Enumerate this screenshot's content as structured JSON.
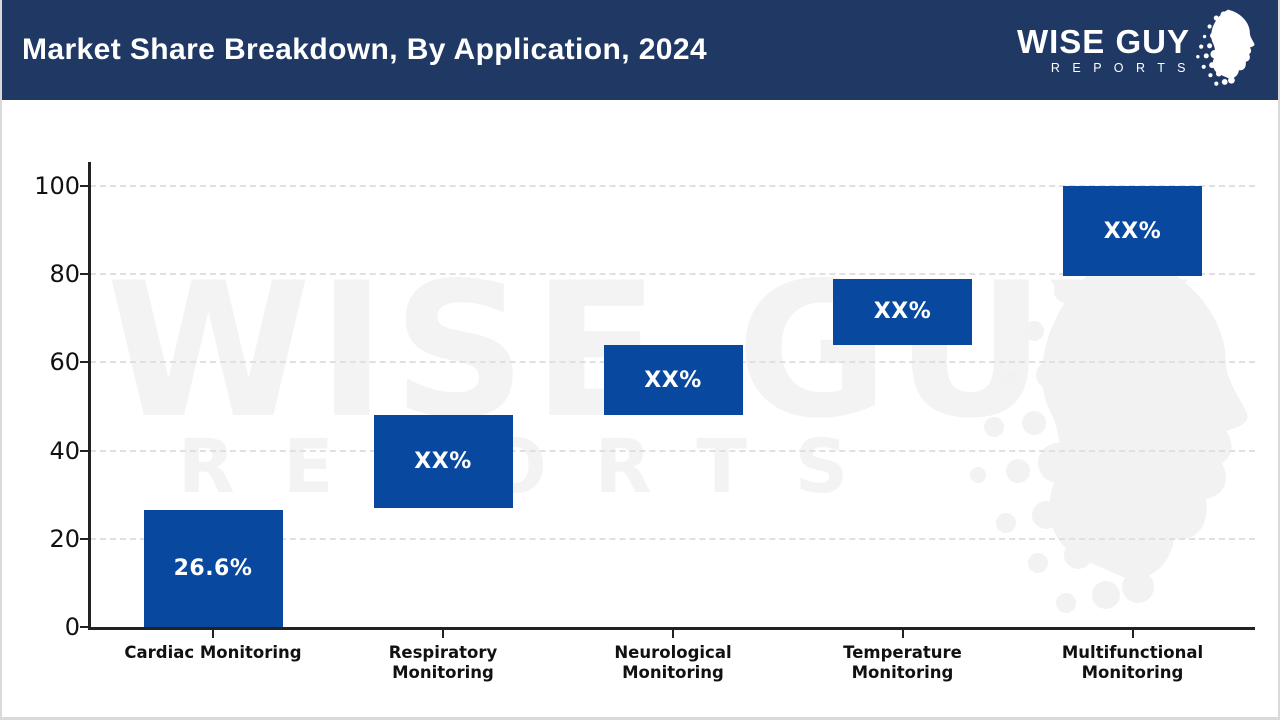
{
  "header": {
    "title": "Market Share Breakdown, By Application, 2024",
    "bg_color": "#203864",
    "logo": {
      "line1": "WISE GUY",
      "line2": "R E P O R T S"
    }
  },
  "watermark": {
    "line1": "WISE GUY",
    "line2": "REPORTS"
  },
  "chart_data": {
    "type": "bar",
    "subtype": "waterfall",
    "title": "Market Share Breakdown, By Application, 2024",
    "xlabel": "",
    "ylabel": "",
    "ylim": [
      0,
      105
    ],
    "y_ticks": [
      0,
      20,
      40,
      60,
      80,
      100
    ],
    "grid": "horizontal dashed",
    "legend": "none",
    "bar_color": "#09489f",
    "categories": [
      {
        "label": "Cardiac Monitoring",
        "lines": [
          "Cardiac Monitoring"
        ]
      },
      {
        "label": "Respiratory Monitoring",
        "lines": [
          "Respiratory",
          "Monitoring"
        ]
      },
      {
        "label": "Neurological Monitoring",
        "lines": [
          "Neurological",
          "Monitoring"
        ]
      },
      {
        "label": "Temperature Monitoring",
        "lines": [
          "Temperature",
          "Monitoring"
        ]
      },
      {
        "label": "Multifunctional Monitoring",
        "lines": [
          "Multifunctional",
          "Monitoring"
        ]
      }
    ],
    "segments": [
      {
        "category": "Cardiac Monitoring",
        "start": 0,
        "end": 26.6,
        "label": "26.6%"
      },
      {
        "category": "Respiratory Monitoring",
        "start": 27,
        "end": 48,
        "label": "XX%"
      },
      {
        "category": "Neurological Monitoring",
        "start": 48,
        "end": 64,
        "label": "XX%"
      },
      {
        "category": "Temperature Monitoring",
        "start": 64,
        "end": 79,
        "label": "XX%"
      },
      {
        "category": "Multifunctional Monitoring",
        "start": 79.5,
        "end": 100,
        "label": "XX%"
      }
    ]
  }
}
